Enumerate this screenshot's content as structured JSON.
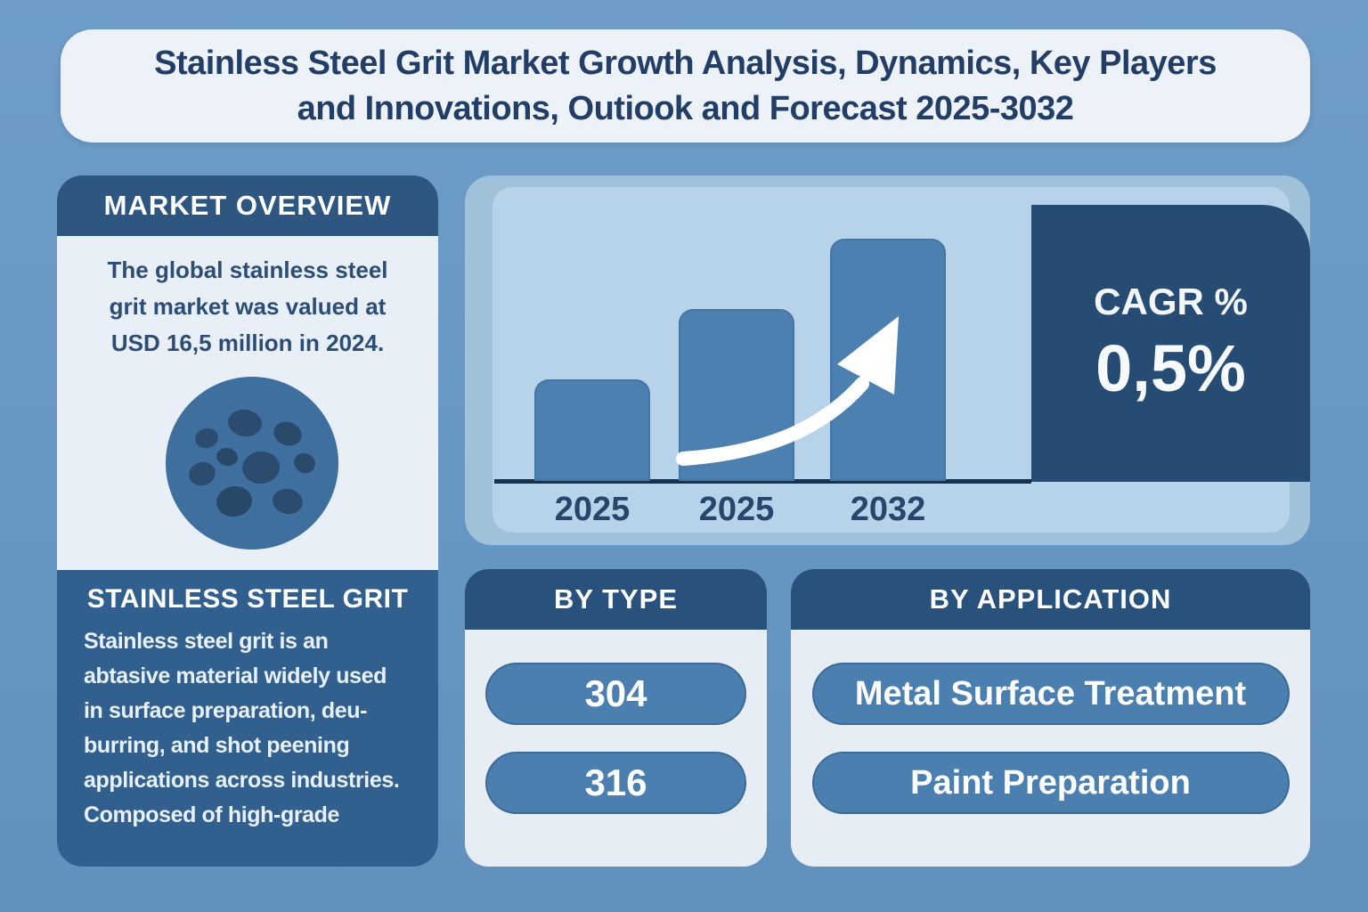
{
  "title": {
    "lines": [
      "Stainless Steel Grit Market Growth Analysis, Dynamics, Key Players",
      "and Innovations, Outiook and Forecast 2025-3032"
    ]
  },
  "market_overview": {
    "header": "MARKET OVERVIEW",
    "body_lines": [
      "The global stainless steel",
      "grit market was valued at",
      "USD 16,5 million in 2024."
    ],
    "icon": "grit-particles-circle"
  },
  "stainless_steel_grit": {
    "header": "STAINLESS STEEL GRIT",
    "body_lines": [
      "Stainless steel grit is an",
      "abtasive material widely used",
      "in surface preparation, deu-",
      "burring, and shot peening",
      "applications across industries.",
      "Composed of high-grade"
    ]
  },
  "chart_data": {
    "type": "bar",
    "categories": [
      "2025",
      "2025",
      "2032"
    ],
    "values": [
      42,
      71,
      100
    ],
    "unit": "relative bar height, % of tallest bar (no y-axis scale shown)",
    "title": "",
    "xlabel": "",
    "ylabel": "",
    "grid": false,
    "legend": [],
    "annotations": [
      "white curved growth arrow pointing up-right"
    ],
    "cagr": {
      "label": "CAGR %",
      "value": "0,5%"
    }
  },
  "by_type": {
    "header": "BY TYPE",
    "items": [
      "304",
      "316"
    ]
  },
  "by_application": {
    "header": "BY APPLICATION",
    "items": [
      "Metal Surface Treatment",
      "Paint Preparation"
    ]
  },
  "colors": {
    "page_background": "#6696c2",
    "banner_background": "#edf2f8",
    "header_blue": "#2d5681",
    "section_blue": "#32608e",
    "light_panel": "#e9eff6",
    "chart_panel_outer": "#9fc1da",
    "chart_panel_inner": "#b7d3e9",
    "bar_blue": "#4b80b1",
    "pill_blue": "#4a7fb0",
    "cagr_box": "#264c74",
    "navy_text": "#223e66",
    "axis_navy": "#16324f",
    "white": "#ffffff"
  },
  "icons": {
    "grit": "grit-particles-circle",
    "arrow": "growth-arrow"
  }
}
